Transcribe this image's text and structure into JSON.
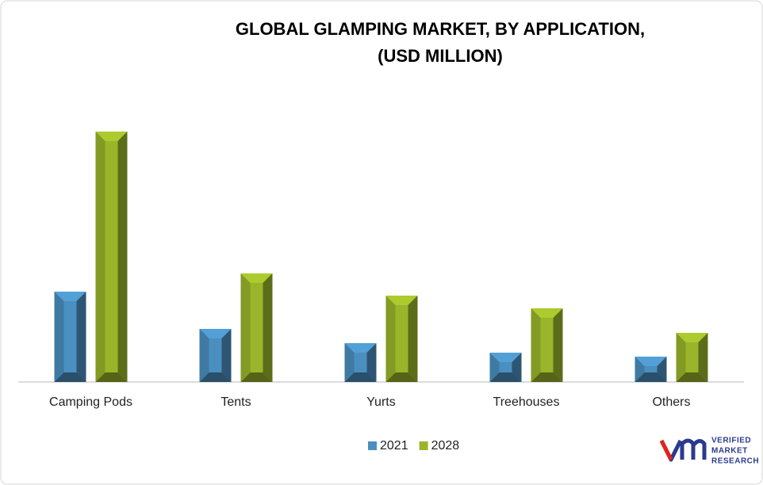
{
  "chart_data": {
    "type": "bar",
    "title": "GLOBAL GLAMPING MARKET, BY APPLICATION,",
    "subtitle": "(USD MILLION)",
    "categories": [
      "Camping Pods",
      "Tents",
      "Yurts",
      "Treehouses",
      "Others"
    ],
    "series": [
      {
        "name": "2021",
        "color": "#4a8fc0",
        "values": [
          114,
          67,
          49,
          37,
          32
        ]
      },
      {
        "name": "2028",
        "color": "#9ab52a",
        "values": [
          316,
          137,
          109,
          93,
          62
        ]
      }
    ],
    "ylim": [
      0,
      350
    ],
    "legend": "bottom"
  },
  "logo": {
    "lines": [
      "VERIFIED",
      "MARKET",
      "RESEARCH"
    ]
  }
}
